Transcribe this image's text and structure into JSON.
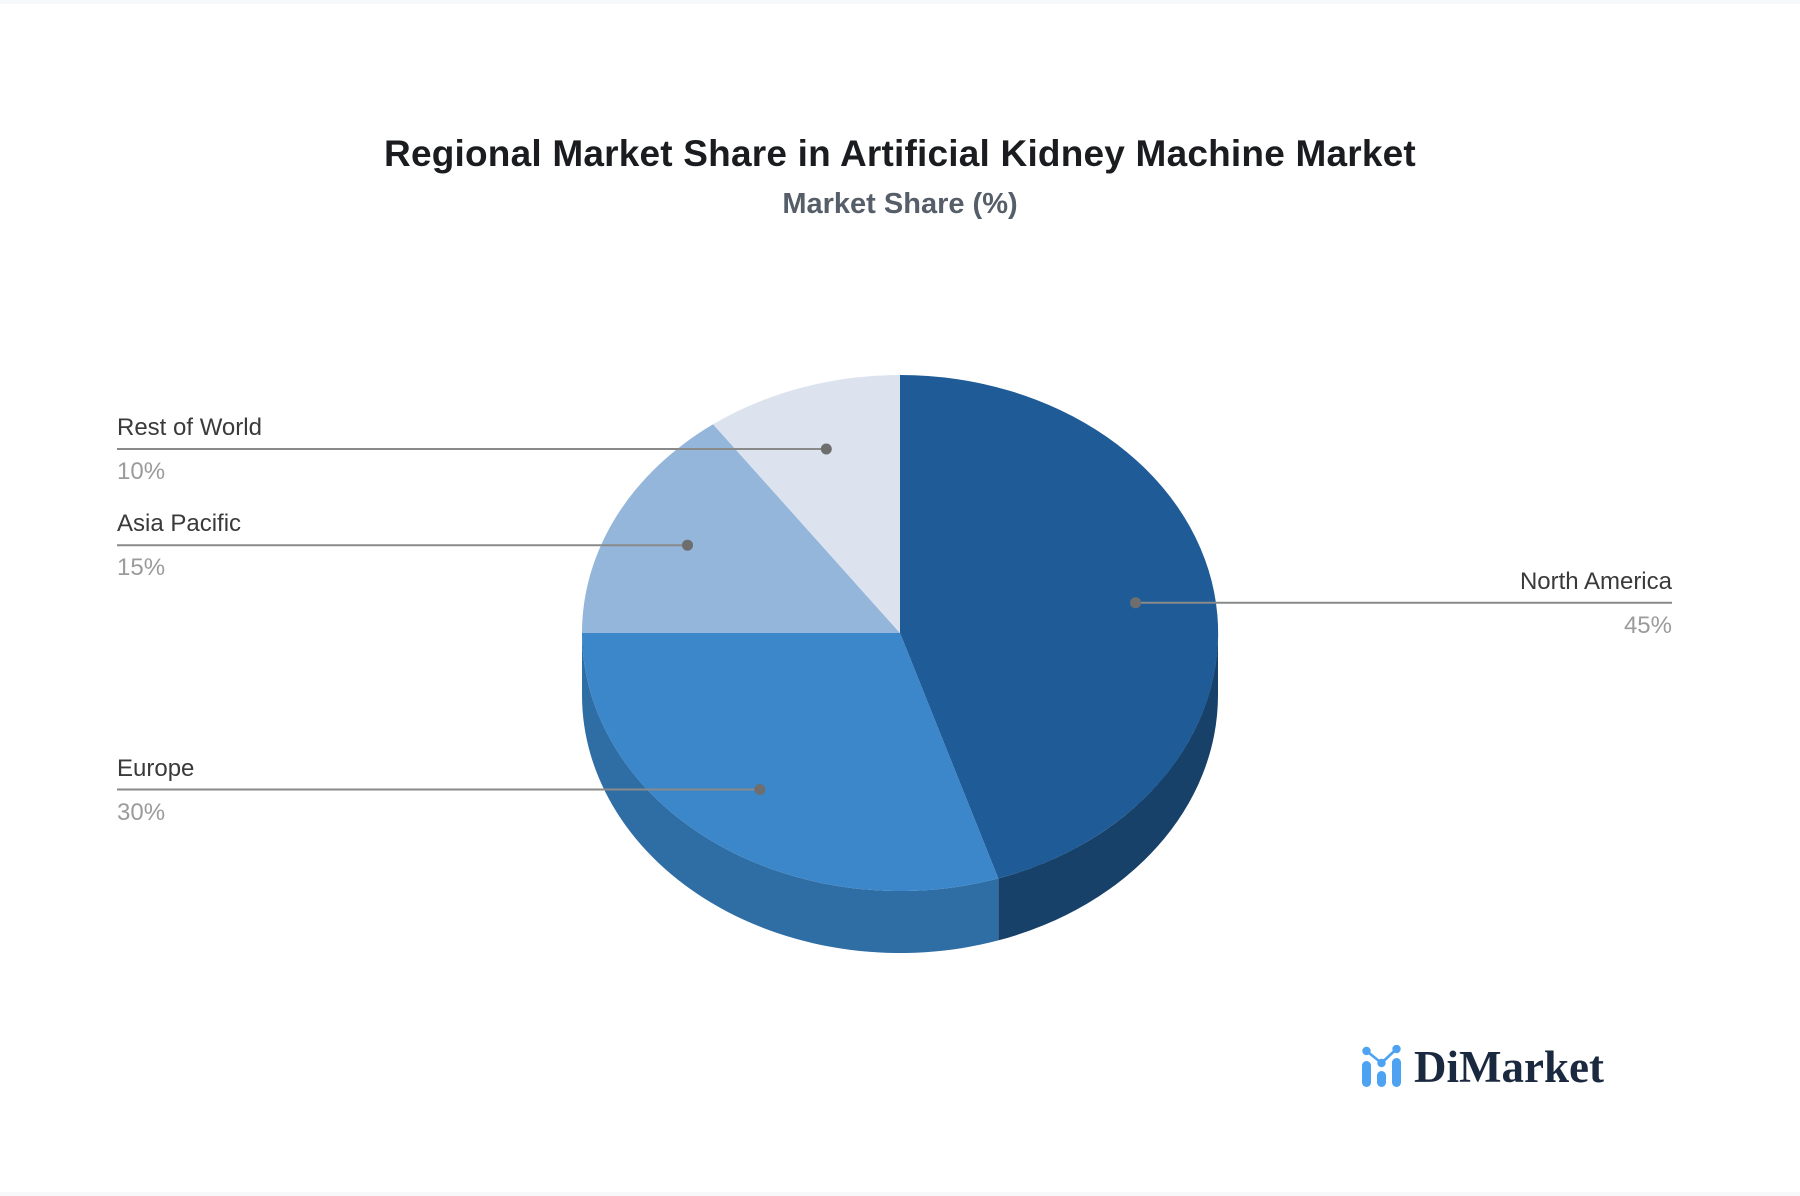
{
  "title": "Regional Market Share in Artificial Kidney Machine Market",
  "subtitle": "Market Share (%)",
  "brand": {
    "name": "DiMarket",
    "icon": "bar-line-chart-icon",
    "icon_color": "#4da3f1",
    "text_color": "#1b2940"
  },
  "style": {
    "leader_line_color": "#8a8a8a",
    "leader_dot_color": "#6e6e6e",
    "label_color": "#3a3a3a",
    "pct_color": "#9b9b9b",
    "title_color": "#1a1c20",
    "subtitle_color": "#555e69",
    "background": "#ffffff"
  },
  "chart_data": {
    "type": "pie",
    "effect": "3d",
    "title": "Regional Market Share in Artificial Kidney Machine Market",
    "subtitle": "Market Share (%)",
    "unit": "%",
    "start_position": "12-oclock",
    "direction": "clockwise",
    "legend": "callout-leader-labels",
    "slices": [
      {
        "label": "North America",
        "value": 45,
        "display_value": "45%",
        "color": "#1f5c97",
        "side_color": "#174169",
        "label_side": "right"
      },
      {
        "label": "Europe",
        "value": 30,
        "display_value": "30%",
        "color": "#3b87ca",
        "side_color": "#2f6da5",
        "label_side": "left"
      },
      {
        "label": "Asia Pacific",
        "value": 15,
        "display_value": "15%",
        "color": "#94b6da",
        "side_color": "#7fa3c9",
        "label_side": "left"
      },
      {
        "label": "Rest of World",
        "value": 10,
        "display_value": "10%",
        "color": "#dce3ef",
        "side_color": "#c2cfe2",
        "label_side": "left"
      }
    ]
  }
}
